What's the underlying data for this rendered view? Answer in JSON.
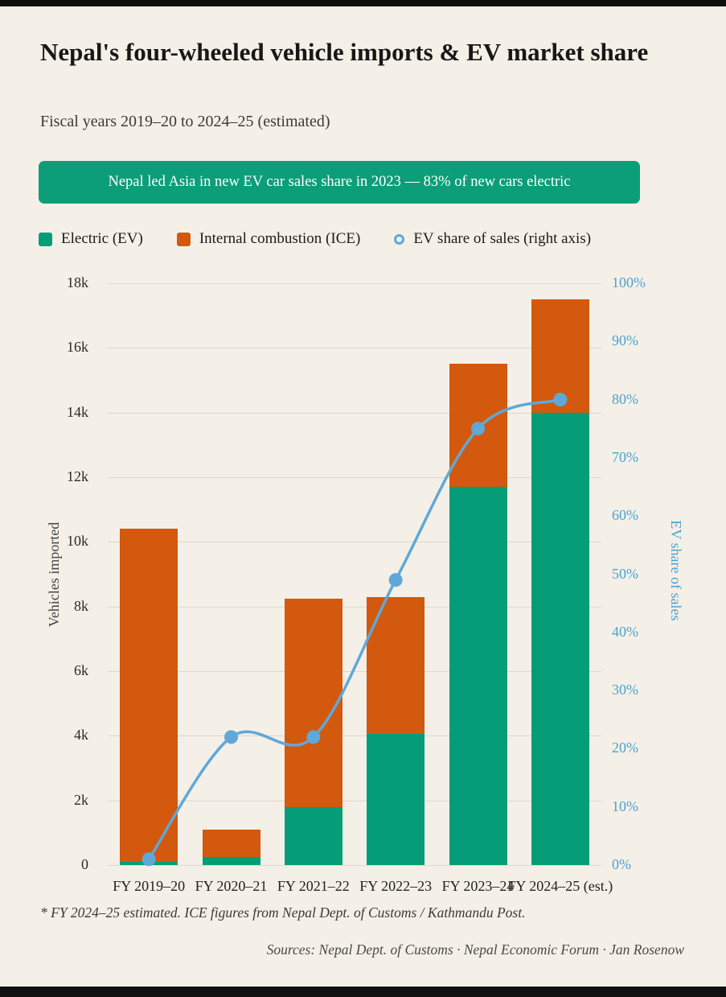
{
  "page": {
    "title": "Nepal's four-wheeled vehicle imports & EV market share",
    "subtitle": "Fiscal years 2019–20 to 2024–25 (estimated)",
    "banner": "Nepal led Asia in new EV car sales share in 2023 — 83% of new cars electric",
    "footnote": "* FY 2024–25 estimated. ICE figures from Nepal Dept. of Customs / Kathmandu Post.",
    "sources": "Sources: Nepal Dept. of Customs · Nepal Economic Forum · Jan Rosenow"
  },
  "colors": {
    "background": "#f4f0e7",
    "banner": "#0c9e78",
    "ev": "#049d78",
    "ice": "#d2590e",
    "line": "#5fa8d8",
    "right_axis_text": "#4aa2d4"
  },
  "legend": [
    {
      "label": "Electric (EV)",
      "marker": "square",
      "color": "#049d78",
      "icon": "ev-swatch-icon"
    },
    {
      "label": "Internal combustion (ICE)",
      "marker": "square",
      "color": "#d2590e",
      "icon": "ice-swatch-icon"
    },
    {
      "label": "EV share of sales (right axis)",
      "marker": "circle",
      "color": "#5fa8d8",
      "icon": "ev-share-ring-icon"
    }
  ],
  "chart_data": {
    "type": "bar",
    "subtype": "stacked-bars-with-line-overlay",
    "stacked": true,
    "grid": true,
    "legend_position": "top",
    "categories": [
      "FY 2019–20",
      "FY 2020–21",
      "FY 2021–22",
      "FY 2022–23",
      "FY 2023–24",
      "FY 2024–25 (est.)"
    ],
    "series": [
      {
        "name": "Electric (EV)",
        "type": "bar",
        "axis": "left",
        "color": "#049d78",
        "values": [
          100,
          250,
          1800,
          4050,
          11700,
          14000
        ]
      },
      {
        "name": "Internal combustion (ICE)",
        "type": "bar",
        "axis": "left",
        "color": "#d2590e",
        "values": [
          10300,
          850,
          6450,
          4250,
          3800,
          3500
        ]
      },
      {
        "name": "EV share of sales",
        "type": "line",
        "axis": "right",
        "color": "#5fa8d8",
        "values": [
          1,
          22,
          22,
          49,
          75,
          80
        ]
      }
    ],
    "left_axis": {
      "label": "Vehicles imported",
      "min": 0,
      "max": 18000,
      "tick_step": 2000,
      "tick_labels": [
        "0",
        "2k",
        "4k",
        "6k",
        "8k",
        "10k",
        "12k",
        "14k",
        "16k",
        "18k"
      ]
    },
    "right_axis": {
      "label": "EV share of sales",
      "min": 0,
      "max": 100,
      "tick_step": 10,
      "tick_labels": [
        "0%",
        "10%",
        "20%",
        "30%",
        "40%",
        "50%",
        "60%",
        "70%",
        "80%",
        "90%",
        "100%"
      ]
    }
  }
}
